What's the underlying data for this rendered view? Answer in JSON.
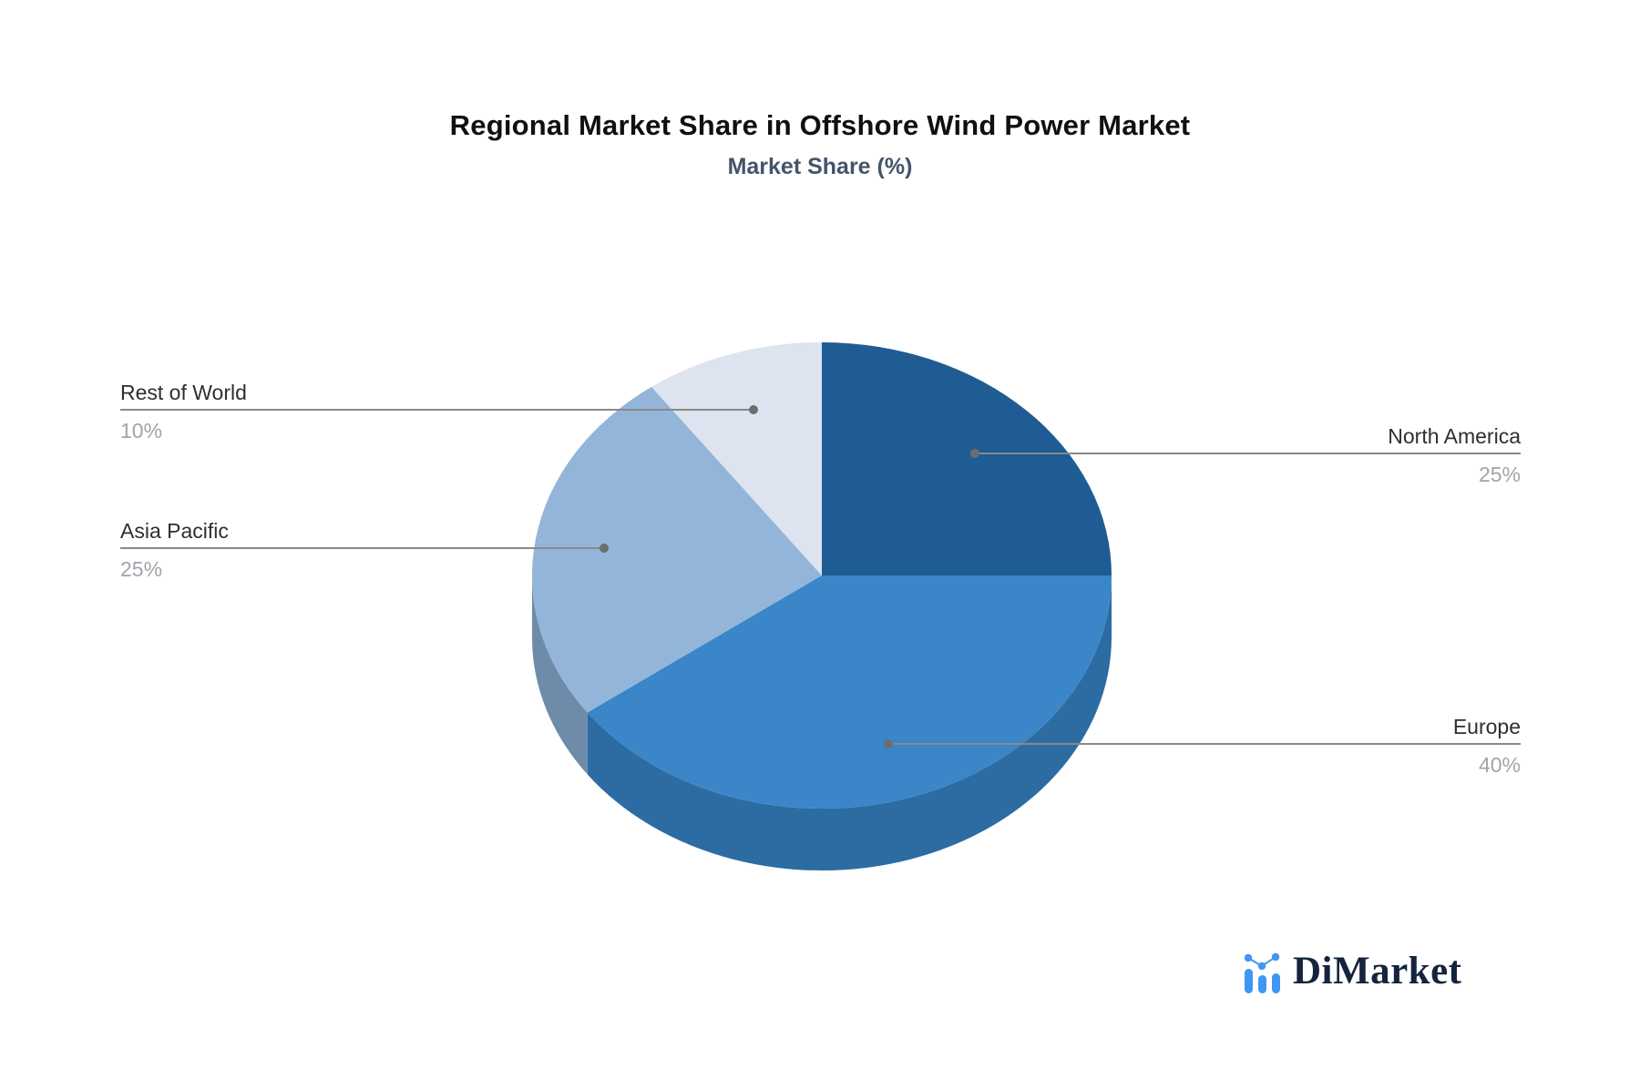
{
  "header": {
    "title": "Regional Market Share in Offshore Wind Power Market",
    "subtitle": "Market Share (%)"
  },
  "chart_data": {
    "type": "pie",
    "title": "Regional Market Share in Offshore Wind Power Market",
    "subtitle": "Market Share (%)",
    "unit": "%",
    "effect_3d": true,
    "direction": "clockwise",
    "start_angle_deg": 0,
    "slices": [
      {
        "label": "North America",
        "value": 25,
        "pct_label": "25%",
        "color": "#1F5C94",
        "side_color": "#17497A",
        "label_side": "right"
      },
      {
        "label": "Europe",
        "value": 40,
        "pct_label": "40%",
        "color": "#3A86C8",
        "side_color": "#2D6CA2",
        "label_side": "right"
      },
      {
        "label": "Asia Pacific",
        "value": 25,
        "pct_label": "25%",
        "color": "#93B5D9",
        "side_color": "#6E8CAA",
        "label_side": "left"
      },
      {
        "label": "Rest of World",
        "value": 10,
        "pct_label": "10%",
        "color": "#DDE4EF",
        "side_color": "#B9C5D6",
        "label_side": "left"
      }
    ],
    "leader_line_color": "#898989",
    "text_colors": {
      "title": "#101010",
      "subtitle": "#44546A",
      "label": "#2F2F2F",
      "pct": "#A0A4AA"
    }
  },
  "logo": {
    "text": "DiMarket",
    "icon": "bar-line-chart-icon",
    "text_color": "#15243C",
    "icon_color": "#3F96F4"
  }
}
